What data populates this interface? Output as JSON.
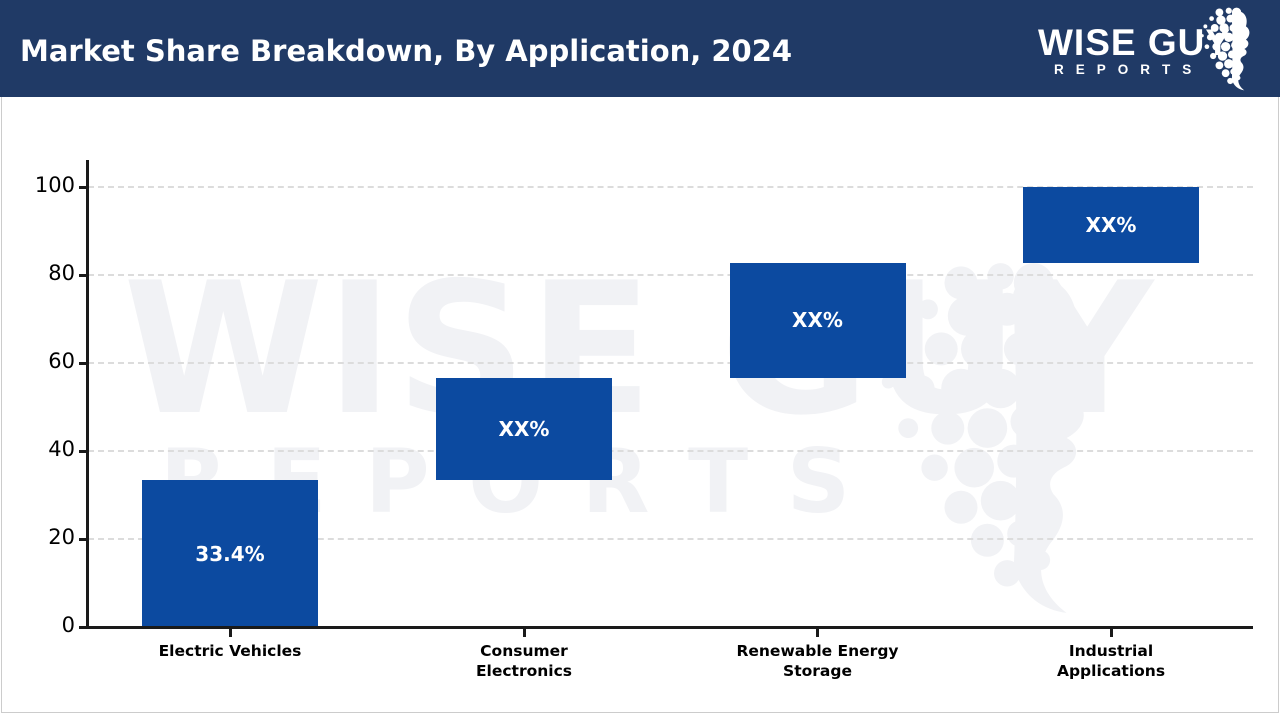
{
  "header": {
    "title": "Market Share Breakdown, By Application, 2024",
    "logo": {
      "wordmark": "WISE GUY",
      "subtitle": "REPORTS"
    }
  },
  "watermark": {
    "wordmark": "WISE GUY",
    "subtitle": "R E P O R T S"
  },
  "colors": {
    "header_bg": "#203a66",
    "bar": "#0c4aa0",
    "grid": "#dcdcdc",
    "axis": "#1a1a1a",
    "value_label": "#ffffff",
    "watermark": "#f1f2f5",
    "card_border": "#cccccc"
  },
  "chart_data": {
    "type": "bar",
    "subtype": "floating-waterfall",
    "title": "Market Share Breakdown, By Application, 2024",
    "categories": [
      "Electric Vehicles",
      "Consumer\nElectronics",
      "Renewable Energy\nStorage",
      "Industrial\nApplications"
    ],
    "segments": [
      {
        "category": "Electric Vehicles",
        "start": 0,
        "end": 33.4,
        "label": "33.4%"
      },
      {
        "category": "Consumer\nElectronics",
        "start": 33.4,
        "end": 56.6,
        "label": "XX%"
      },
      {
        "category": "Renewable Energy\nStorage",
        "start": 56.6,
        "end": 82.8,
        "label": "XX%"
      },
      {
        "category": "Industrial\nApplications",
        "start": 82.8,
        "end": 100,
        "label": "XX%"
      }
    ],
    "yticks": [
      0,
      20,
      40,
      60,
      80,
      100
    ],
    "ylim": [
      0,
      106
    ],
    "xlabel": "",
    "ylabel": "",
    "grid": "horizontal-dashed",
    "legend_position": "none"
  }
}
